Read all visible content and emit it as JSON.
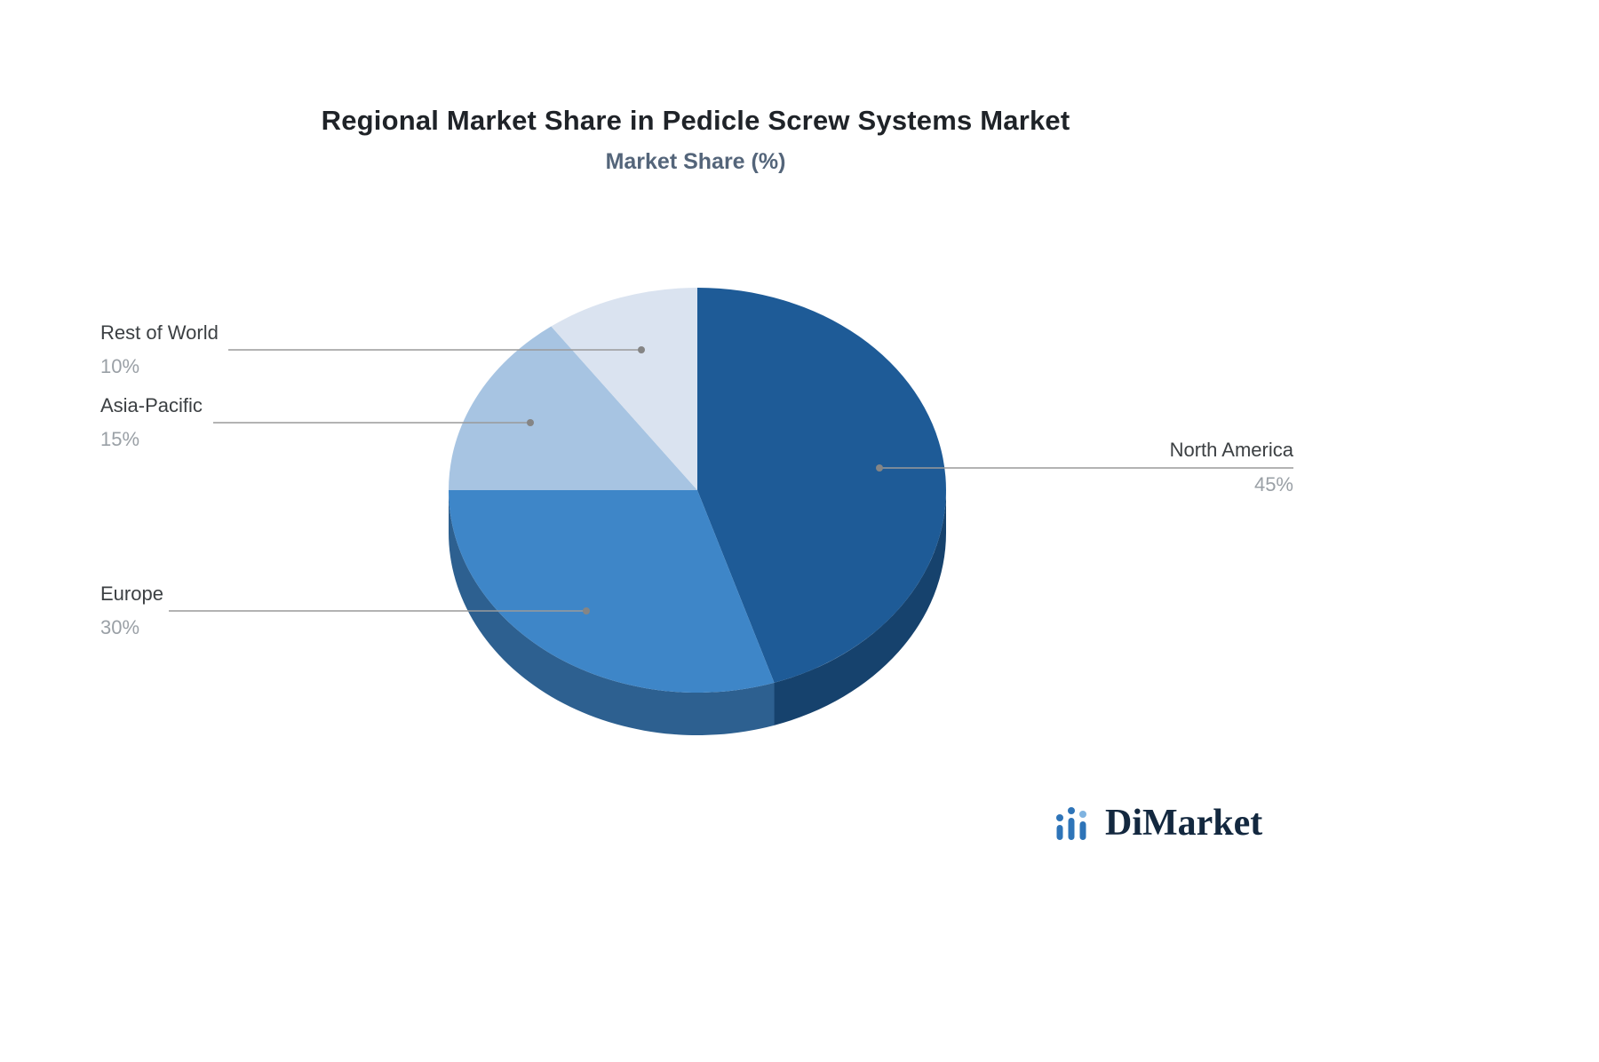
{
  "chart": {
    "title": "Regional Market Share in Pedicle Screw Systems Market",
    "subtitle": "Market Share (%)"
  },
  "chart_data": {
    "type": "pie",
    "title": "Regional Market Share in Pedicle Screw Systems Market",
    "subtitle": "Market Share (%)",
    "unit": "%",
    "effect": "3d",
    "start_angle_deg": 0,
    "direction": "clockwise",
    "legend_position": "none",
    "slices": [
      {
        "label": "North America",
        "value": 45,
        "display": "45%",
        "color": "#1e5b97"
      },
      {
        "label": "Europe",
        "value": 30,
        "display": "30%",
        "color": "#3e86c8"
      },
      {
        "label": "Asia-Pacific",
        "value": 15,
        "display": "15%",
        "color": "#a7c4e2"
      },
      {
        "label": "Rest of World",
        "value": 10,
        "display": "10%",
        "color": "#dae3f0"
      }
    ],
    "leader_line_color": "#9a9a9a",
    "label_name_color": "#3c4043",
    "label_value_color": "#9aa0a6"
  },
  "branding": {
    "logo_text": "DiMarket",
    "logo_icon": "bar-chart-icon",
    "logo_color": "#13283f",
    "icon_color": "#2e74b8"
  }
}
